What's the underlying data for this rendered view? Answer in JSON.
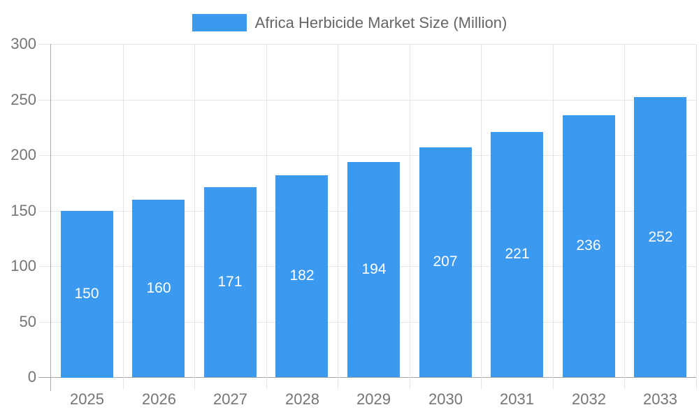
{
  "chart_data": {
    "type": "bar",
    "title": "Africa Herbicide Market Size (Million)",
    "categories": [
      "2025",
      "2026",
      "2027",
      "2028",
      "2029",
      "2030",
      "2031",
      "2032",
      "2033"
    ],
    "series": [
      {
        "name": "Africa Herbicide Market Size (Million)",
        "values": [
          150,
          160,
          171,
          182,
          194,
          207,
          221,
          236,
          252
        ]
      }
    ],
    "xlabel": "",
    "ylabel": "",
    "ylim": [
      0,
      300
    ],
    "yticks": [
      0,
      50,
      100,
      150,
      200,
      250,
      300
    ],
    "grid": true,
    "legend_position": "top",
    "value_label_position": "inside-center",
    "colors": {
      "bar": "#3b99f0",
      "grid": "#e5e5e5",
      "axis_line": "#a8a8a8",
      "tick_text": "#757575",
      "value_text": "#ffffff",
      "legend_text": "#666666",
      "background": "#ffffff"
    }
  }
}
